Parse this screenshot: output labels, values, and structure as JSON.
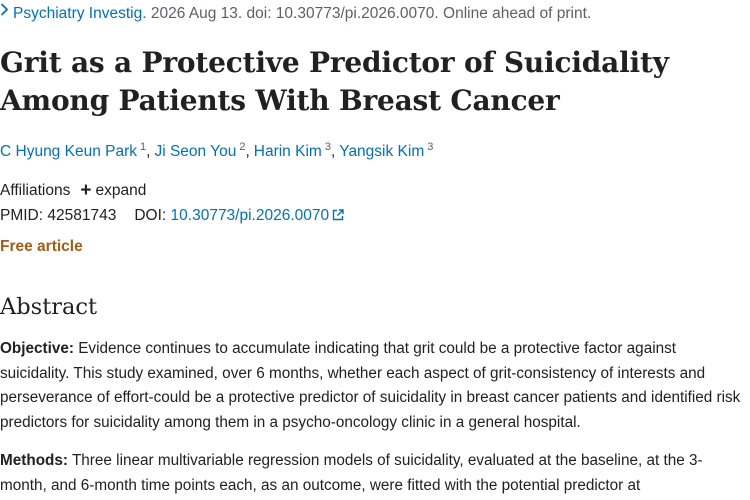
{
  "citation": {
    "journal": "Psychiatry Investig.",
    "rest": " 2026 Aug 13. doi: 10.30773/pi.2026.0070. Online ahead of print."
  },
  "title": "Grit as a Protective Predictor of Suicidality Among Patients With Breast Cancer",
  "authors": [
    {
      "name": "C Hyung Keun Park",
      "sup": "1"
    },
    {
      "name": "Ji Seon You",
      "sup": "2"
    },
    {
      "name": "Harin Kim",
      "sup": "3"
    },
    {
      "name": "Yangsik Kim",
      "sup": "3"
    }
  ],
  "affiliations": {
    "label": "Affiliations",
    "expand": "expand"
  },
  "ids": {
    "pmid_label": "PMID:",
    "pmid": "42581743",
    "doi_label": "DOI:",
    "doi": "10.30773/pi.2026.0070"
  },
  "free_article": "Free article",
  "abstract": {
    "heading": "Abstract",
    "objective_label": "Objective:",
    "objective_text": " Evidence continues to accumulate indicating that grit could be a protective factor against suicidality. This study examined, over 6 months, whether each aspect of grit-consistency of interests and perseverance of effort-could be a protective predictor of suicidality in breast cancer patients and identified risk predictors for suicidality among them in a psycho-oncology clinic in a general hospital.",
    "methods_label": "Methods:",
    "methods_text": " Three linear multivariable regression models of suicidality, evaluated at the baseline, at the 3-month, and 6-month time points each, as an outcome, were fitted with the potential predictor at"
  },
  "colors": {
    "link": "#0071bc",
    "free": "#a35e15",
    "text": "#212121",
    "muted": "#5b616b"
  }
}
